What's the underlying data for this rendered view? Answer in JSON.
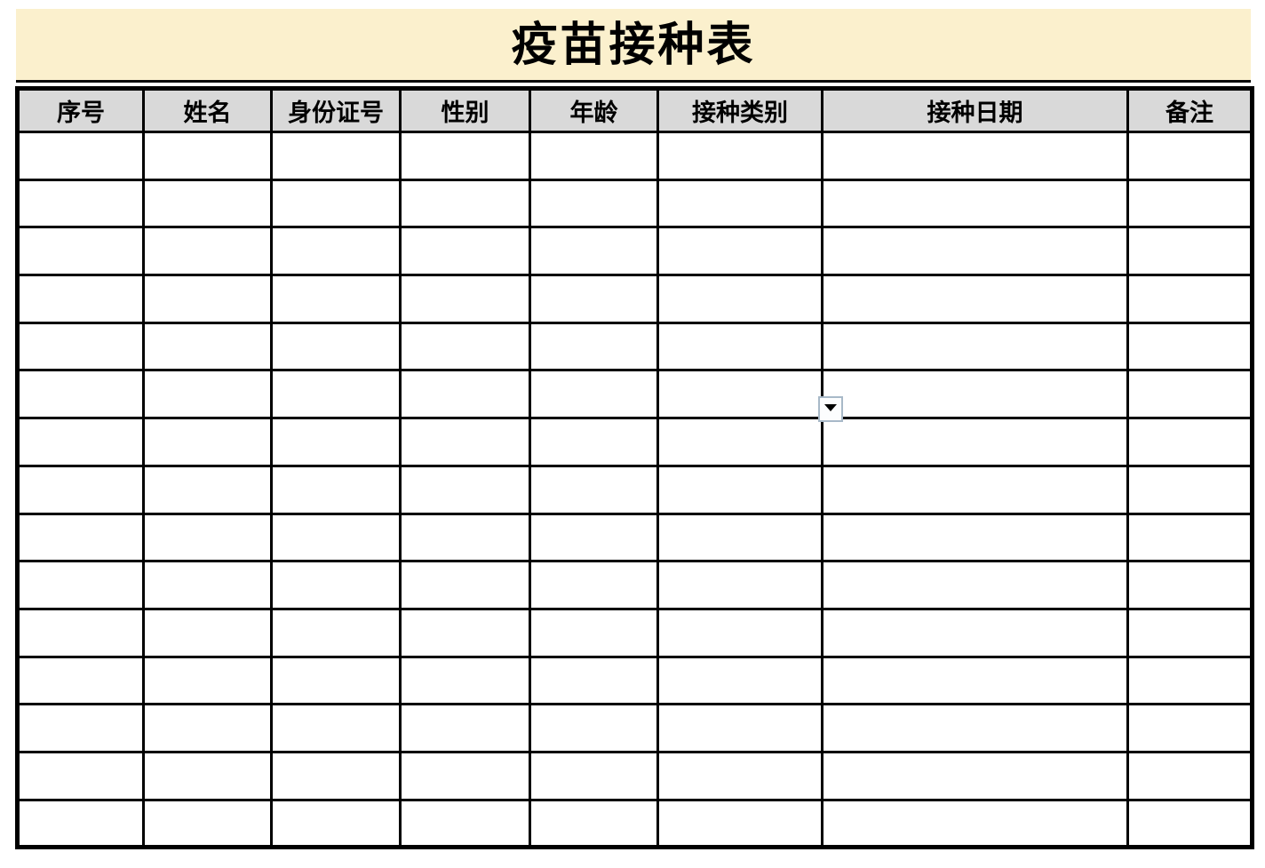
{
  "title": "疫苗接种表",
  "table": {
    "columns": [
      {
        "key": "index",
        "label": "序号"
      },
      {
        "key": "name",
        "label": "姓名"
      },
      {
        "key": "id-number",
        "label": "身份证号"
      },
      {
        "key": "gender",
        "label": "性别"
      },
      {
        "key": "age",
        "label": "年龄"
      },
      {
        "key": "vaccination-category",
        "label": "接种类别"
      },
      {
        "key": "vaccination-date",
        "label": "接种日期"
      },
      {
        "key": "remarks",
        "label": "备注"
      }
    ],
    "row_count": 15,
    "rows_empty": true
  },
  "dropdown": {
    "icon": "down-triangle",
    "row_index": 6,
    "column": "接种类别"
  },
  "colors": {
    "banner_bg": "#fbf0cd",
    "header_bg": "#d9d9d9",
    "grid_border": "#000000",
    "dropdown_border": "#a8b9c8",
    "dropdown_bg": "#fcfdfe"
  }
}
